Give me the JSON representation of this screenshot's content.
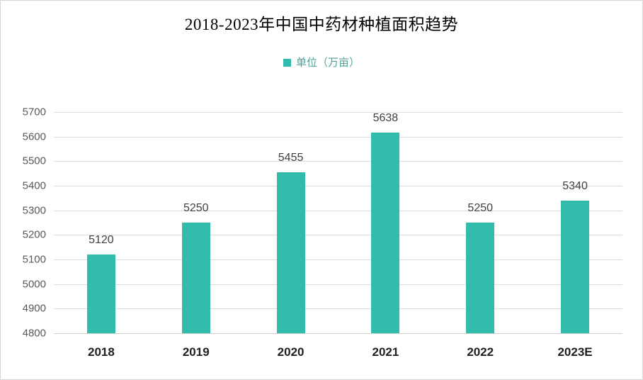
{
  "title": "2018-2023年中国中药材种植面积趋势",
  "legend": {
    "label": "单位（万亩）"
  },
  "colors": {
    "bar": "#31bcac",
    "grid": "#dcdcdc",
    "axis": "#cfcfcf",
    "ytick_text": "#595959",
    "xtick_text": "#1f1f1f",
    "datalabel_text": "#3f3f3f",
    "legend_text": "#55a09a",
    "title_text": "#000000",
    "background": "#ffffff"
  },
  "chart_data": {
    "type": "bar",
    "title": "2018-2023年中国中药材种植面积趋势",
    "legend_entries": [
      "单位（万亩）"
    ],
    "legend_position": "top",
    "categories": [
      "2018",
      "2019",
      "2020",
      "2021",
      "2022",
      "2023E"
    ],
    "values": [
      5120,
      5250,
      5455,
      5638,
      5250,
      5340
    ],
    "data_labels_shown": true,
    "xlabel": "",
    "ylabel": "",
    "ylim": [
      4800,
      5700
    ],
    "yticks": [
      4800,
      4900,
      5000,
      5100,
      5200,
      5300,
      5400,
      5500,
      5600,
      5700
    ],
    "grid": true
  }
}
